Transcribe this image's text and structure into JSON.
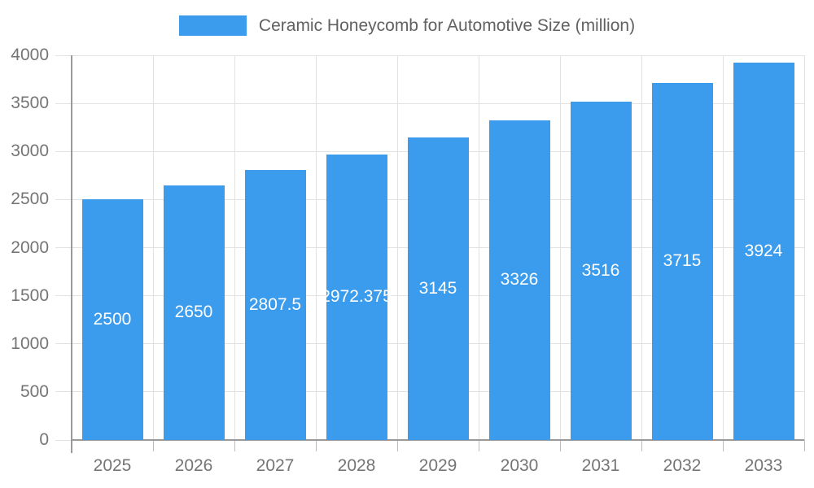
{
  "chart_data": {
    "type": "bar",
    "title": "Ceramic Honeycomb for Automotive Size (million)",
    "categories": [
      "2025",
      "2026",
      "2027",
      "2028",
      "2029",
      "2030",
      "2031",
      "2032",
      "2033"
    ],
    "values": [
      2500,
      2650,
      2807.5,
      2972.375,
      3145,
      3326,
      3516,
      3715,
      3924
    ],
    "bar_labels": [
      "2500",
      "2650",
      "2807.5",
      "2972.375",
      "3145",
      "3326",
      "3516",
      "3715",
      "3924"
    ],
    "xlabel": "",
    "ylabel": "",
    "ylim": [
      0,
      4000
    ],
    "yticks": [
      "0",
      "500",
      "1000",
      "1500",
      "2000",
      "2500",
      "3000",
      "3500",
      "4000"
    ],
    "grid": true,
    "legend_position": "top",
    "colors": {
      "bar": "#3B9CED",
      "grid": "#E2E2E2",
      "axis": "#9A9A9A",
      "tick": "#BDBDBD",
      "tick_label": "#757575",
      "title": "#616161",
      "bar_label": "#FFFFFF",
      "background": "#FFFFFF"
    }
  }
}
